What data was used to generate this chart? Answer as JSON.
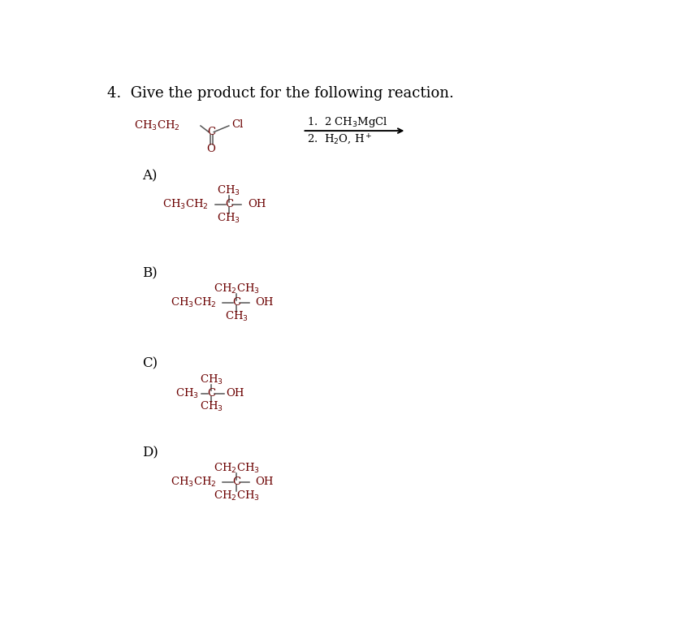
{
  "title": "4.  Give the product for the following reaction.",
  "background_color": "#ffffff",
  "text_color": "#000000",
  "structure_color": "#6B0000",
  "bond_color": "#555555",
  "title_fontsize": 13,
  "fs_struct": 9.5,
  "fs_label": 12,
  "reagent_label1": "1.  2 CH$_3$MgCl",
  "reagent_label2": "2.  H$_2$O, H$^+$",
  "option_A_label": "A)",
  "option_B_label": "B)",
  "option_C_label": "C)",
  "option_D_label": "D)"
}
